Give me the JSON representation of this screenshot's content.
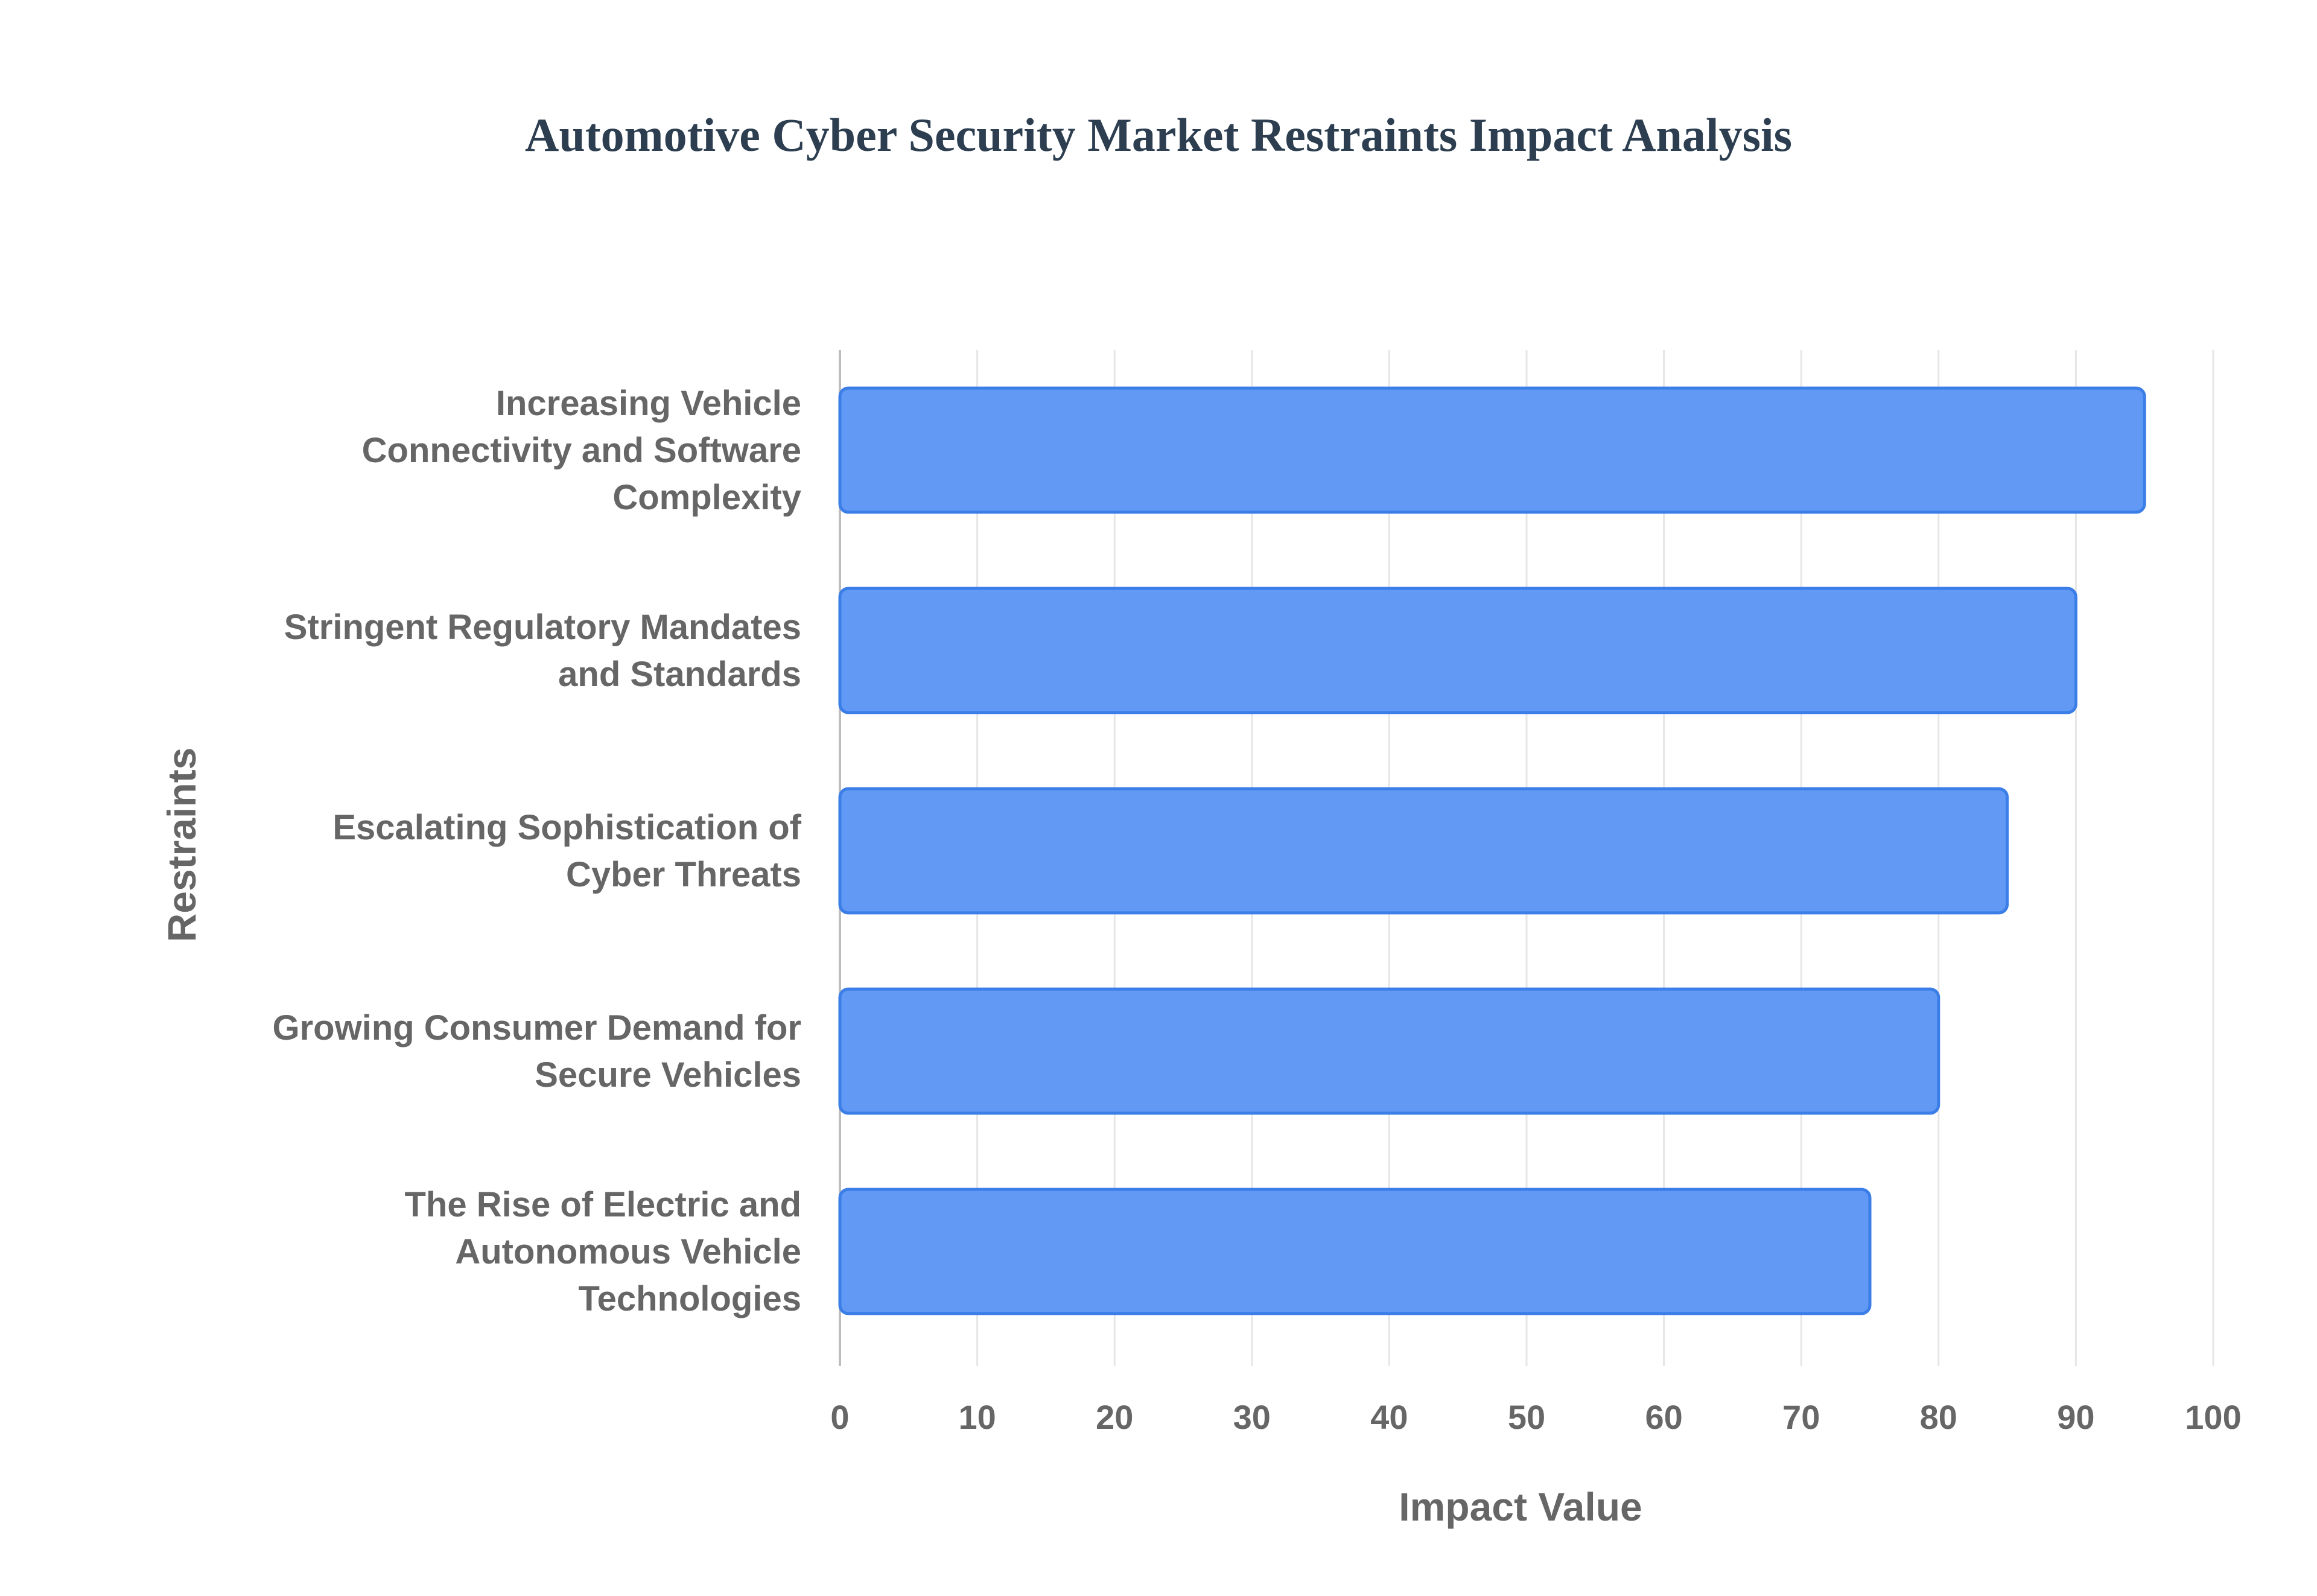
{
  "chart_data": {
    "type": "bar",
    "orientation": "horizontal",
    "title": "Automotive Cyber Security Market Restraints Impact Analysis",
    "xlabel": "Impact Value",
    "ylabel": "Restraints",
    "xlim": [
      0,
      100
    ],
    "xticks": [
      0,
      10,
      20,
      30,
      40,
      50,
      60,
      70,
      80,
      90,
      100
    ],
    "grid": true,
    "legend": "none",
    "bar_color": "#6199f5",
    "bar_border_color": "#3b7ee8",
    "categories": [
      [
        "Increasing Vehicle",
        "Connectivity and Software",
        "Complexity"
      ],
      [
        "Stringent Regulatory Mandates",
        "and Standards"
      ],
      [
        "Escalating Sophistication of",
        "Cyber Threats"
      ],
      [
        "Growing Consumer Demand for",
        "Secure Vehicles"
      ],
      [
        "The Rise of Electric and",
        "Autonomous Vehicle",
        "Technologies"
      ]
    ],
    "values": [
      95,
      90,
      85,
      80,
      75
    ]
  }
}
